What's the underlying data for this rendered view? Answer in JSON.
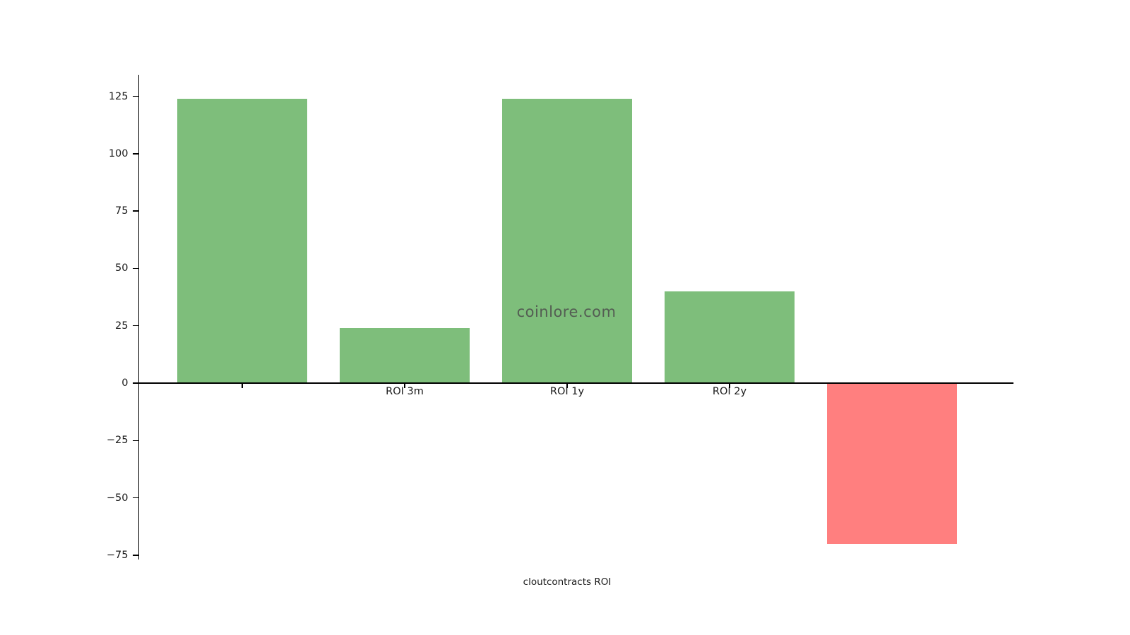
{
  "chart_data": {
    "type": "bar",
    "title": "cloutcontracts ROI",
    "watermark": "coinlore.com",
    "categories": [
      "",
      "ROI 3m",
      "ROI 1y",
      "ROI 2y",
      ""
    ],
    "values": [
      124,
      24,
      124,
      40,
      -70
    ],
    "bar_colors": [
      "#7ebe7b",
      "#7ebe7b",
      "#7ebe7b",
      "#7ebe7b",
      "#ff7f7f"
    ],
    "positive_color": "#7ebe7b",
    "negative_color": "#ff7f7f",
    "y_ticks": [
      125,
      100,
      75,
      50,
      25,
      0,
      -25,
      -50,
      -75
    ],
    "ylim": [
      -76.5,
      134.5
    ],
    "xlabel": "",
    "ylabel": "",
    "grid": false,
    "legend_position": "none",
    "axis_color": "#000000",
    "text_color": "#1a1a1a"
  }
}
